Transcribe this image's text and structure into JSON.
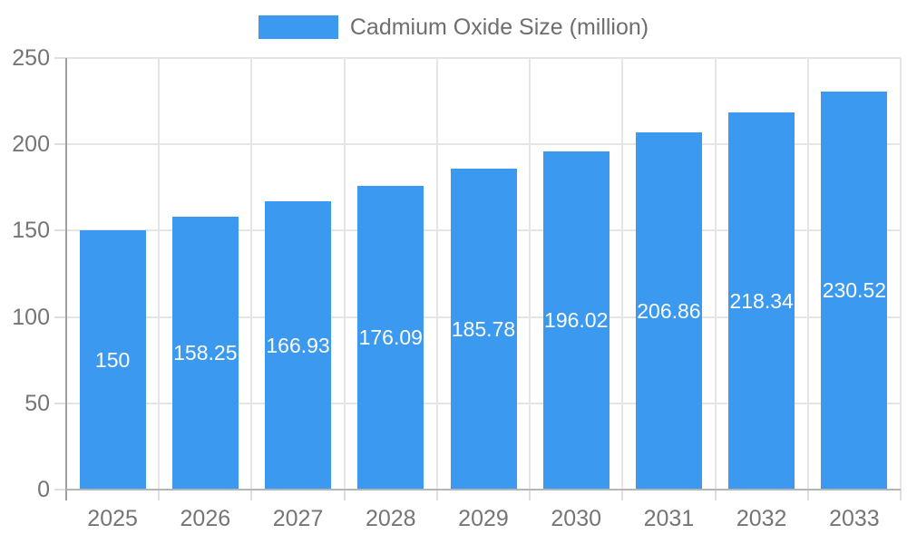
{
  "legend": {
    "label": "Cadmium Oxide Size (million)",
    "position": "top-center"
  },
  "chart_data": {
    "type": "bar",
    "title": "",
    "categories": [
      "2025",
      "2026",
      "2027",
      "2028",
      "2029",
      "2030",
      "2031",
      "2032",
      "2033"
    ],
    "series": [
      {
        "name": "Cadmium Oxide Size (million)",
        "values": [
          150,
          158.25,
          166.93,
          176.09,
          185.78,
          196.02,
          206.86,
          218.34,
          230.52
        ],
        "color": "#3B99EF"
      }
    ],
    "value_labels": [
      "150",
      "158.25",
      "166.93",
      "176.09",
      "185.78",
      "196.02",
      "206.86",
      "218.34",
      "230.52"
    ],
    "xlabel": "",
    "ylabel": "",
    "ylim": [
      0,
      250
    ],
    "yticks": [
      0,
      50,
      100,
      150,
      200,
      250
    ],
    "grid": true,
    "legend_position": "top",
    "value_label_position": "center-inside-bar"
  },
  "colors": {
    "bar": "#3B99EF",
    "grid_line": "#E5E5E5",
    "tick_mark": "#DEDEDE",
    "y_axis_line": "#A0A0A0",
    "x_axis_line": "#B5B5B5",
    "axis_label_text": "#757575",
    "legend_text": "#6E6E6E",
    "value_label_text": "#FFFFFF",
    "background": "#FFFFFF"
  }
}
